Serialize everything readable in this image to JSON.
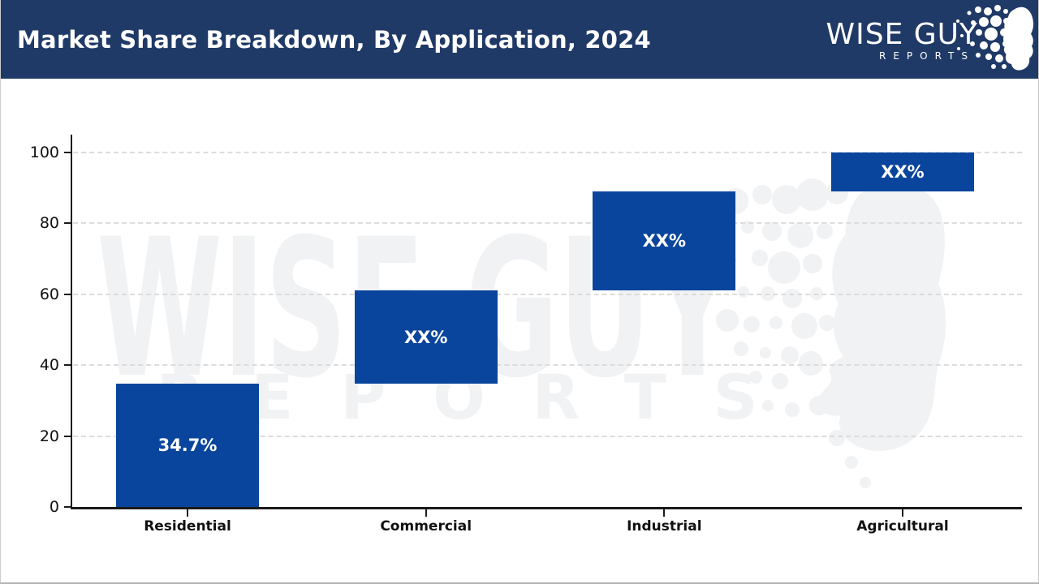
{
  "header": {
    "title": "Market Share Breakdown, By Application, 2024",
    "bg_color": "#203a67",
    "logo": {
      "wordmark": "WISE GUY",
      "subtitle": "REPORTS"
    }
  },
  "watermark": {
    "wordmark": "WISE GUY",
    "subtitle": "REPORTS"
  },
  "chart_data": {
    "type": "bar",
    "subtype": "waterfall",
    "title": "Market Share Breakdown, By Application, 2024",
    "categories": [
      "Residential",
      "Commercial",
      "Industrial",
      "Agricultural"
    ],
    "series": [
      {
        "name": "Market share (%)",
        "segments": [
          {
            "category": "Residential",
            "start": 0,
            "end": 34.7,
            "label": "34.7%"
          },
          {
            "category": "Commercial",
            "start": 34.7,
            "end": 61,
            "label": "XX%"
          },
          {
            "category": "Industrial",
            "start": 61,
            "end": 89,
            "label": "XX%"
          },
          {
            "category": "Agricultural",
            "start": 89,
            "end": 100,
            "label": "XX%"
          }
        ]
      }
    ],
    "xlabel": "",
    "ylabel": "",
    "yticks": [
      0,
      20,
      40,
      60,
      80,
      100
    ],
    "ylim": [
      0,
      105
    ],
    "grid": {
      "horizontal": true,
      "style": "dashed",
      "color": "#dcdcdc"
    },
    "legend": null,
    "bar_color": "#0a459d",
    "bar_label_color": "#ffffff"
  }
}
